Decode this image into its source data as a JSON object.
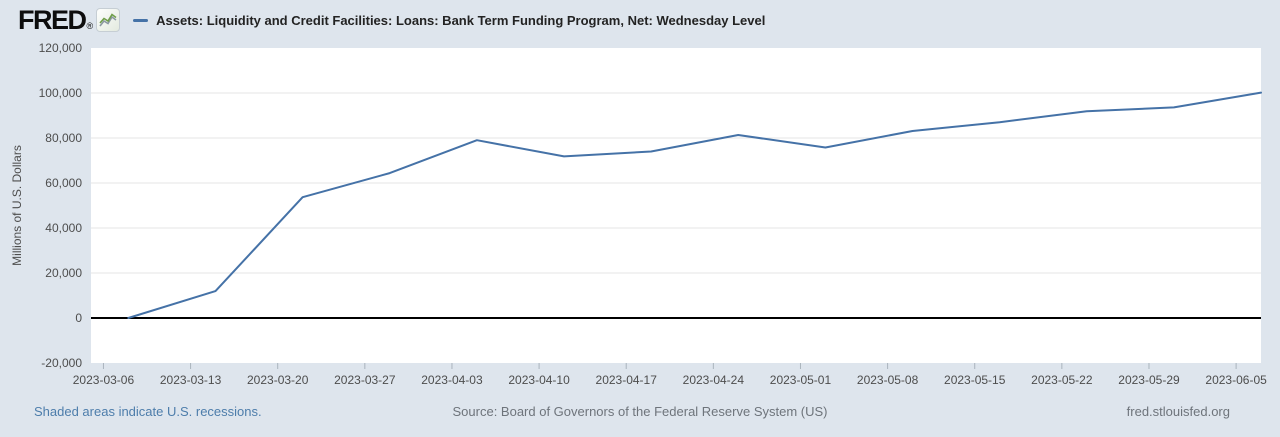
{
  "header": {
    "logo_text": "FRED",
    "registered_mark": "®",
    "legend_label": "Assets: Liquidity and Credit Facilities: Loans: Bank Term Funding Program, Net: Wednesday Level"
  },
  "footer": {
    "recession_note": "Shaded areas indicate U.S. recessions.",
    "source": "Source: Board of Governors of the Federal Reserve System (US)",
    "site": "fred.stlouisfed.org"
  },
  "colors": {
    "page_bg": "#dee5ed",
    "plot_bg": "#ffffff",
    "line": "#4572a7",
    "grid": "#e6e6e6",
    "zero_line": "#000000",
    "axis_text": "#4d4d4d",
    "tick_mark": "#aab4bd",
    "link": "#4d7dab",
    "muted_text": "#6e747b"
  },
  "chart_data": {
    "type": "line",
    "title": "Assets: Liquidity and Credit Facilities: Loans: Bank Term Funding Program, Net: Wednesday Level",
    "xlabel": "",
    "ylabel": "Millions of U.S. Dollars",
    "series": [
      {
        "name": "Assets: Liquidity and Credit Facilities: Loans: Bank Term Funding Program, Net: Wednesday Level",
        "x": [
          "2023-03-08",
          "2023-03-15",
          "2023-03-22",
          "2023-03-29",
          "2023-04-05",
          "2023-04-12",
          "2023-04-19",
          "2023-04-26",
          "2023-05-03",
          "2023-05-10",
          "2023-05-17",
          "2023-05-24",
          "2023-05-31",
          "2023-06-07"
        ],
        "values": [
          0,
          11943,
          53669,
          64403,
          79021,
          71837,
          73982,
          81327,
          75778,
          83101,
          87006,
          91907,
          93615,
          100161
        ]
      }
    ],
    "x_ticks": [
      "2023-03-06",
      "2023-03-13",
      "2023-03-20",
      "2023-03-27",
      "2023-04-03",
      "2023-04-10",
      "2023-04-17",
      "2023-04-24",
      "2023-05-01",
      "2023-05-08",
      "2023-05-15",
      "2023-05-22",
      "2023-05-29",
      "2023-06-05"
    ],
    "y_ticks": [
      -20000,
      0,
      20000,
      40000,
      60000,
      80000,
      100000,
      120000
    ],
    "ylim": [
      -20000,
      120000
    ],
    "x_domain": [
      "2023-03-05",
      "2023-06-07"
    ],
    "grid": true,
    "legend_position": "top-left",
    "zero_baseline": true
  }
}
